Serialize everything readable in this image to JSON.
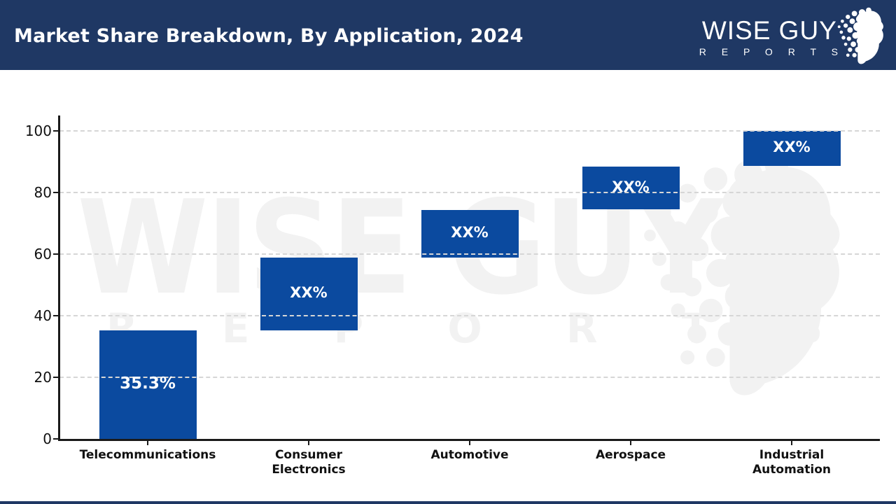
{
  "header": {
    "title": "Market Share Breakdown, By Application, 2024",
    "logo": {
      "name": "WISE GUY",
      "subtitle": "R E P O R T S"
    }
  },
  "watermark": {
    "line1": "WISE GUY",
    "line2": "R E P O R T S"
  },
  "colors": {
    "header_bg": "#1f3864",
    "bar": "#0b4a9f",
    "bar_label": "#ffffff",
    "grid": "#d6d6d6",
    "axis": "#1a1a1a",
    "watermark": "#f2f2f2",
    "title_text": "#ffffff"
  },
  "chart_data": {
    "type": "bar",
    "subtype": "waterfall",
    "title": "Market Share Breakdown, By Application, 2024",
    "categories": [
      "Telecommunications",
      "Consumer Electronics",
      "Automotive",
      "Aerospace",
      "Industrial Automation"
    ],
    "category_lines": [
      [
        "Telecommunications"
      ],
      [
        "Consumer",
        "Electronics"
      ],
      [
        "Automotive"
      ],
      [
        "Aerospace"
      ],
      [
        "Industrial",
        "Automation"
      ]
    ],
    "segments": [
      {
        "category": "Telecommunications",
        "start": 0,
        "end": 35.3,
        "label": "35.3%"
      },
      {
        "category": "Consumer Electronics",
        "start": 35.3,
        "end": 58.8,
        "label": "XX%"
      },
      {
        "category": "Automotive",
        "start": 58.8,
        "end": 74.3,
        "label": "XX%"
      },
      {
        "category": "Aerospace",
        "start": 74.6,
        "end": 88.3,
        "label": "XX%"
      },
      {
        "category": "Industrial Automation",
        "start": 88.6,
        "end": 100,
        "label": "XX%"
      }
    ],
    "ylabel": "",
    "xlabel": "",
    "yticks": [
      0,
      20,
      40,
      60,
      80,
      100
    ],
    "ylim": [
      0,
      105
    ],
    "grid": "horizontal-dashed",
    "legend": null,
    "bar_value_labels_inside": true
  }
}
